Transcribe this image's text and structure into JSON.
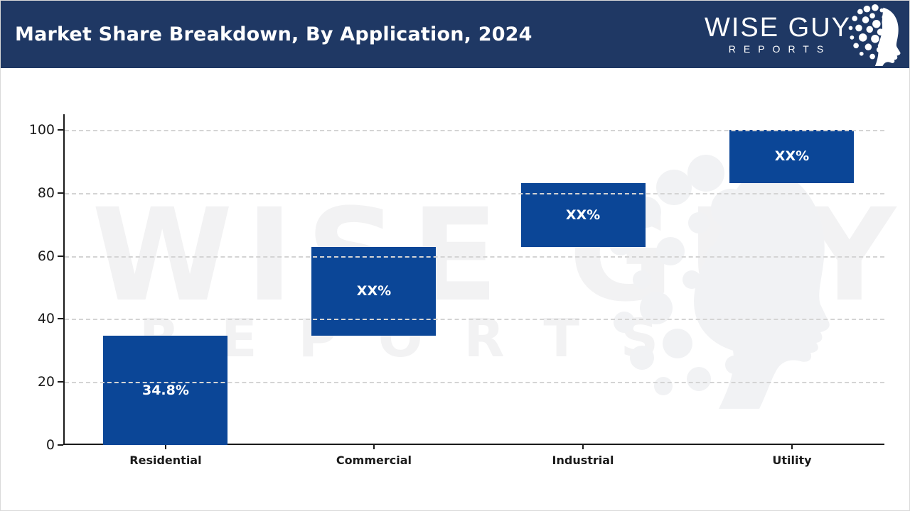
{
  "header": {
    "title": "Market Share Breakdown, By Application, 2024",
    "background_color": "#1f3864",
    "logo": {
      "wordmark": "WISE GUY",
      "subtitle": "REPORTS"
    }
  },
  "watermark": {
    "wordmark": "WISE GUY",
    "subtitle": "REPORTS"
  },
  "chart_data": {
    "type": "bar",
    "subtype": "waterfall",
    "title": "Market Share Breakdown, By Application, 2024",
    "xlabel": "",
    "ylabel": "",
    "categories": [
      "Residential",
      "Commercial",
      "Industrial",
      "Utility"
    ],
    "segments": [
      {
        "category": "Residential",
        "start": 0,
        "end": 34.8,
        "label": "34.8%"
      },
      {
        "category": "Commercial",
        "start": 34.8,
        "end": 62.8,
        "label": "XX%"
      },
      {
        "category": "Industrial",
        "start": 62.8,
        "end": 83.2,
        "label": "XX%"
      },
      {
        "category": "Utility",
        "start": 83.2,
        "end": 100,
        "label": "XX%"
      }
    ],
    "yticks": [
      0,
      20,
      40,
      60,
      80,
      100
    ],
    "ylim": [
      0,
      105
    ],
    "grid": "horizontal-dashed",
    "legend": "none",
    "bar_color": "#0b4697",
    "bar_label_color": "#ffffff",
    "axis_color": "#1a1a1a",
    "gridline_color": "#d4d4d4"
  }
}
